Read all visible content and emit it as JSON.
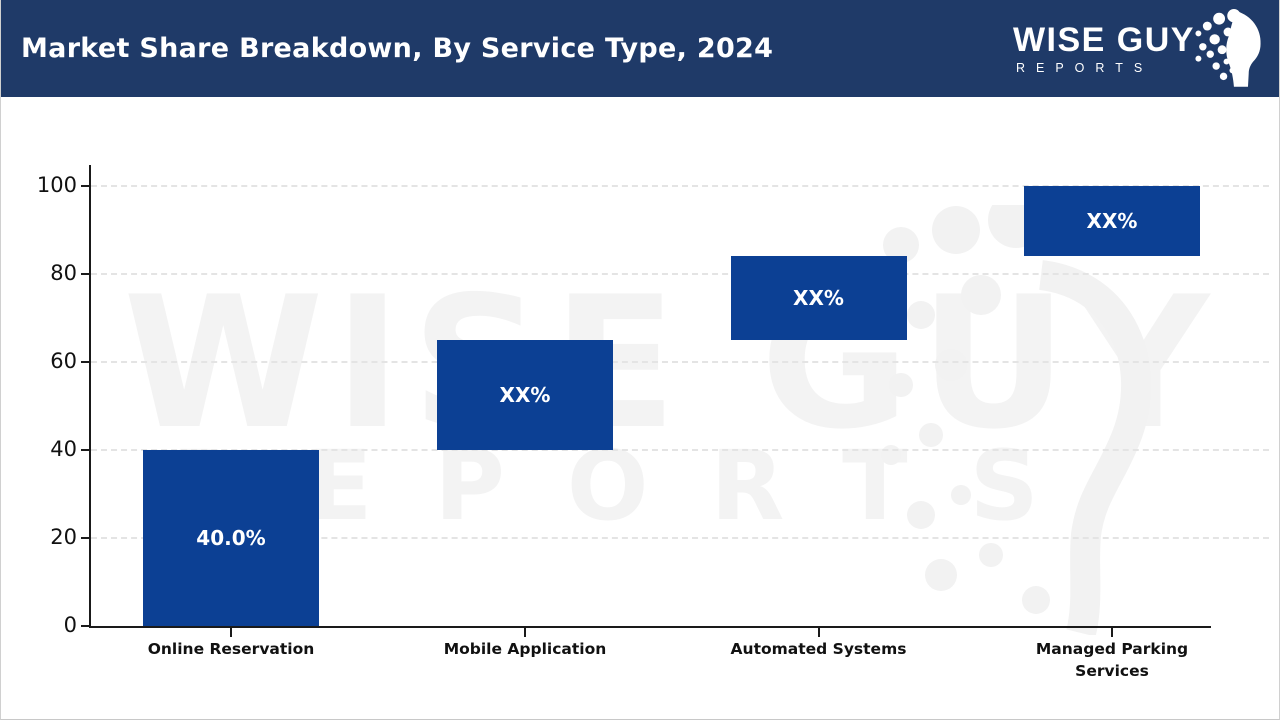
{
  "header": {
    "title": "Market Share Breakdown, By Service Type, 2024",
    "bg_color": "#1f3a68",
    "logo": {
      "line1": "WISE GUY",
      "line2": "REPORTS"
    }
  },
  "watermark": {
    "line1": "WISE GUY",
    "line2": "REPORTS"
  },
  "chart_data": {
    "type": "bar",
    "subtype": "waterfall",
    "title": "Market Share Breakdown, By Service Type, 2024",
    "categories": [
      "Online Reservation",
      "Mobile Application",
      "Automated Systems",
      "Managed Parking Services"
    ],
    "series": [
      {
        "name": "Market Share",
        "segments": [
          {
            "category": "Online Reservation",
            "start": 0,
            "end": 40,
            "label": "40.0%"
          },
          {
            "category": "Mobile Application",
            "start": 40,
            "end": 65,
            "label": "XX%"
          },
          {
            "category": "Automated Systems",
            "start": 65,
            "end": 84,
            "label": "XX%"
          },
          {
            "category": "Managed Parking Services",
            "start": 84,
            "end": 100,
            "label": "XX%"
          }
        ]
      }
    ],
    "xlabel": "",
    "ylabel": "",
    "ylim": [
      0,
      100
    ],
    "yticks": [
      0,
      20,
      40,
      60,
      80,
      100
    ],
    "grid": "horizontal-dashed",
    "legend": "none",
    "bar_color": "#0c4094",
    "bar_label_color": "#ffffff",
    "axis_color": "#1a1a1a",
    "gridline_color": "#e4e4e4"
  }
}
